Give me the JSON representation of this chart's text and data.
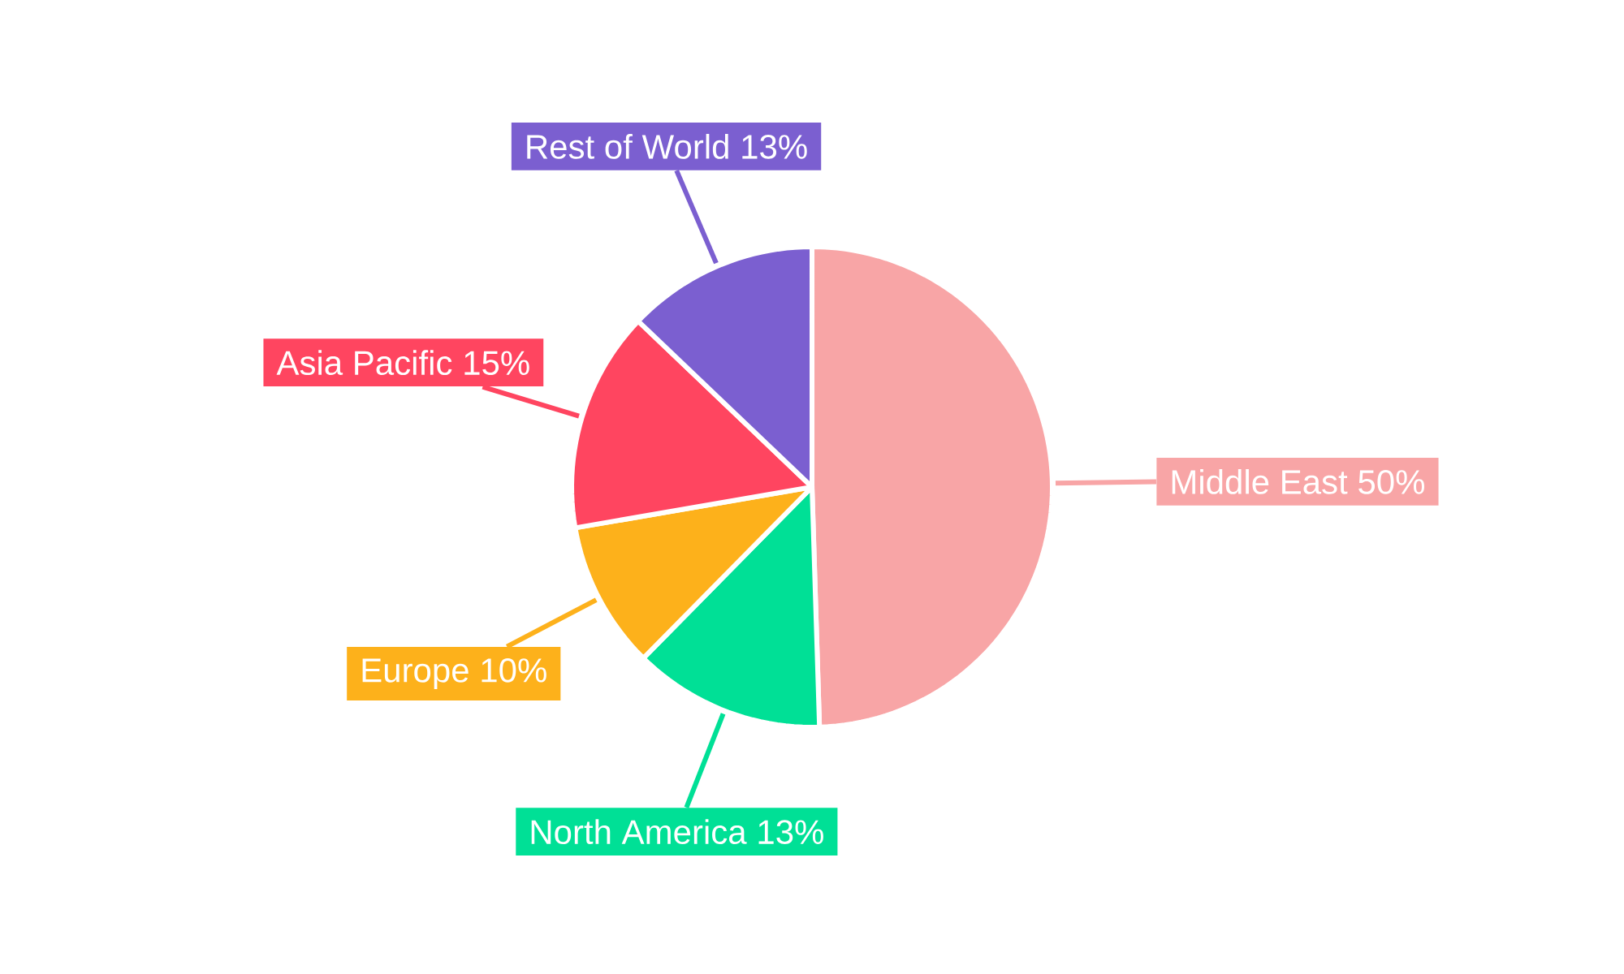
{
  "chart_data": {
    "type": "pie",
    "categories": [
      "Middle East",
      "North America",
      "Europe",
      "Asia Pacific",
      "Rest of World"
    ],
    "values": [
      50,
      13,
      10,
      15,
      13
    ],
    "colors": [
      "#f8a5a6",
      "#00e096",
      "#fdb11b",
      "#ff4560",
      "#7b5fd0"
    ],
    "value_labels": [
      "50%",
      "13%",
      "10%",
      "15%",
      "13%"
    ]
  }
}
